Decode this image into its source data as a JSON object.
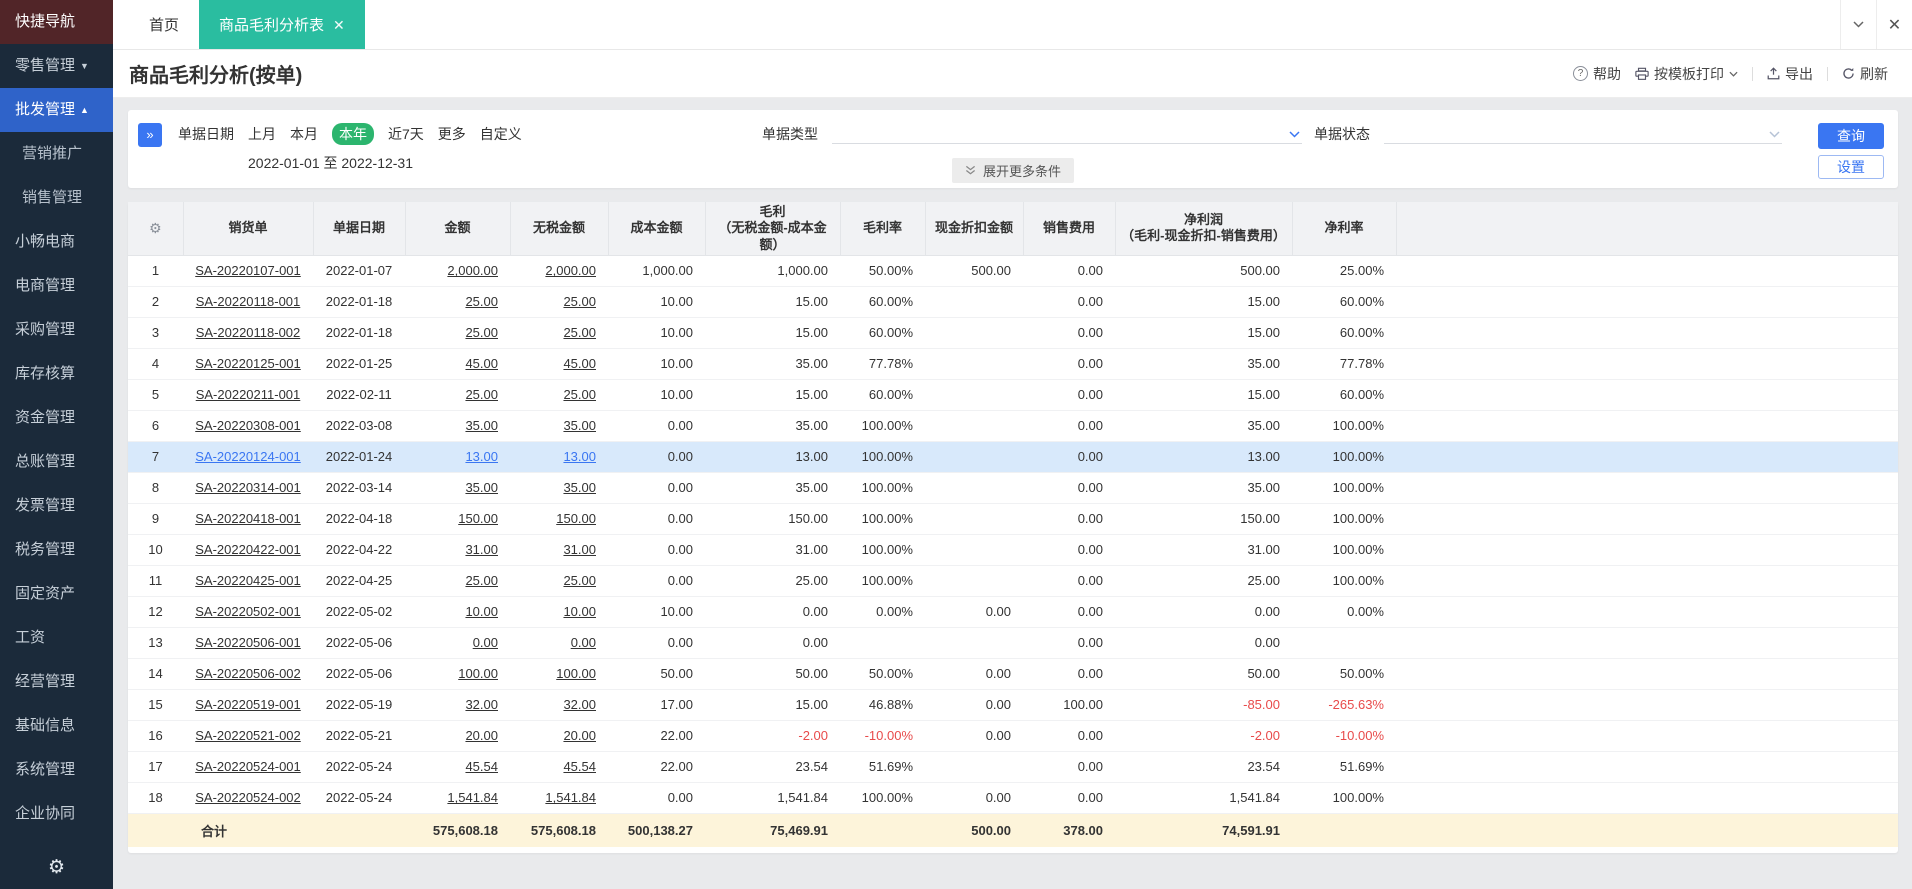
{
  "colors": {
    "accent_blue": "#3a76f2",
    "tab_teal": "#2abda0",
    "green_pill": "#2cb56e",
    "negative_red": "#e84b4b",
    "selected_row_bg": "#d8e9fb",
    "total_row_bg": "#fdf4da",
    "sidebar_bg": "#1b2a3a",
    "quick_nav_bg": "#512528"
  },
  "sidebar": {
    "items": [
      {
        "label": "快捷导航",
        "kind": "quick"
      },
      {
        "label": "零售管理",
        "kind": "group",
        "arrow": "down"
      },
      {
        "label": "批发管理",
        "kind": "group",
        "arrow": "up",
        "active": true
      },
      {
        "label": "营销推广",
        "kind": "sub"
      },
      {
        "label": "销售管理",
        "kind": "sub"
      },
      {
        "label": "小畅电商",
        "kind": "item"
      },
      {
        "label": "电商管理",
        "kind": "item"
      },
      {
        "label": "采购管理",
        "kind": "item"
      },
      {
        "label": "库存核算",
        "kind": "item"
      },
      {
        "label": "资金管理",
        "kind": "item"
      },
      {
        "label": "总账管理",
        "kind": "item"
      },
      {
        "label": "发票管理",
        "kind": "item"
      },
      {
        "label": "税务管理",
        "kind": "item"
      },
      {
        "label": "固定资产",
        "kind": "item"
      },
      {
        "label": "工资",
        "kind": "item"
      },
      {
        "label": "经营管理",
        "kind": "item"
      },
      {
        "label": "基础信息",
        "kind": "item"
      },
      {
        "label": "系统管理",
        "kind": "item"
      },
      {
        "label": "企业协同",
        "kind": "item"
      }
    ]
  },
  "tabs": {
    "home_label": "首页",
    "active_label": "商品毛利分析表"
  },
  "header": {
    "title": "商品毛利分析(按单)",
    "help": "帮助",
    "print": "按模板打印",
    "export": "导出",
    "refresh": "刷新"
  },
  "filters": {
    "date_label": "单据日期",
    "date_options": [
      "上月",
      "本月",
      "本年",
      "近7天",
      "更多",
      "自定义"
    ],
    "date_selected_index": 2,
    "date_range": "2022-01-01 至 2022-12-31",
    "type_label": "单据类型",
    "status_label": "单据状态",
    "query_button": "查询",
    "settings_button": "设置",
    "expand_more": "展开更多条件"
  },
  "table": {
    "columns": [
      {
        "label": "",
        "icon": "gear"
      },
      {
        "label": "销货单"
      },
      {
        "label": "单据日期"
      },
      {
        "label": "金额"
      },
      {
        "label": "无税金额"
      },
      {
        "label": "成本金额"
      },
      {
        "label": "毛利",
        "sub": "（无税金额-成本金额）"
      },
      {
        "label": "毛利率"
      },
      {
        "label": "现金折扣金额"
      },
      {
        "label": "销售费用"
      },
      {
        "label": "净利润",
        "sub": "（毛利-现金折扣-销售费用）"
      },
      {
        "label": "净利率"
      }
    ],
    "rows": [
      {
        "cells": [
          "1",
          "SA-20220107-001",
          "2022-01-07",
          "2,000.00",
          "2,000.00",
          "1,000.00",
          "1,000.00",
          "50.00%",
          "500.00",
          "0.00",
          "500.00",
          "25.00%"
        ]
      },
      {
        "cells": [
          "2",
          "SA-20220118-001",
          "2022-01-18",
          "25.00",
          "25.00",
          "10.00",
          "15.00",
          "60.00%",
          "",
          "0.00",
          "15.00",
          "60.00%"
        ]
      },
      {
        "cells": [
          "3",
          "SA-20220118-002",
          "2022-01-18",
          "25.00",
          "25.00",
          "10.00",
          "15.00",
          "60.00%",
          "",
          "0.00",
          "15.00",
          "60.00%"
        ]
      },
      {
        "cells": [
          "4",
          "SA-20220125-001",
          "2022-01-25",
          "45.00",
          "45.00",
          "10.00",
          "35.00",
          "77.78%",
          "",
          "0.00",
          "35.00",
          "77.78%"
        ]
      },
      {
        "cells": [
          "5",
          "SA-20220211-001",
          "2022-02-11",
          "25.00",
          "25.00",
          "10.00",
          "15.00",
          "60.00%",
          "",
          "0.00",
          "15.00",
          "60.00%"
        ]
      },
      {
        "cells": [
          "6",
          "SA-20220308-001",
          "2022-03-08",
          "35.00",
          "35.00",
          "0.00",
          "35.00",
          "100.00%",
          "",
          "0.00",
          "35.00",
          "100.00%"
        ]
      },
      {
        "cells": [
          "7",
          "SA-20220124-001",
          "2022-01-24",
          "13.00",
          "13.00",
          "0.00",
          "13.00",
          "100.00%",
          "",
          "0.00",
          "13.00",
          "100.00%"
        ],
        "selected": true
      },
      {
        "cells": [
          "8",
          "SA-20220314-001",
          "2022-03-14",
          "35.00",
          "35.00",
          "0.00",
          "35.00",
          "100.00%",
          "",
          "0.00",
          "35.00",
          "100.00%"
        ]
      },
      {
        "cells": [
          "9",
          "SA-20220418-001",
          "2022-04-18",
          "150.00",
          "150.00",
          "0.00",
          "150.00",
          "100.00%",
          "",
          "0.00",
          "150.00",
          "100.00%"
        ]
      },
      {
        "cells": [
          "10",
          "SA-20220422-001",
          "2022-04-22",
          "31.00",
          "31.00",
          "0.00",
          "31.00",
          "100.00%",
          "",
          "0.00",
          "31.00",
          "100.00%"
        ]
      },
      {
        "cells": [
          "11",
          "SA-20220425-001",
          "2022-04-25",
          "25.00",
          "25.00",
          "0.00",
          "25.00",
          "100.00%",
          "",
          "0.00",
          "25.00",
          "100.00%"
        ]
      },
      {
        "cells": [
          "12",
          "SA-20220502-001",
          "2022-05-02",
          "10.00",
          "10.00",
          "10.00",
          "0.00",
          "0.00%",
          "0.00",
          "0.00",
          "0.00",
          "0.00%"
        ]
      },
      {
        "cells": [
          "13",
          "SA-20220506-001",
          "2022-05-06",
          "0.00",
          "0.00",
          "0.00",
          "0.00",
          "",
          "",
          "0.00",
          "0.00",
          ""
        ]
      },
      {
        "cells": [
          "14",
          "SA-20220506-002",
          "2022-05-06",
          "100.00",
          "100.00",
          "50.00",
          "50.00",
          "50.00%",
          "0.00",
          "0.00",
          "50.00",
          "50.00%"
        ]
      },
      {
        "cells": [
          "15",
          "SA-20220519-001",
          "2022-05-19",
          "32.00",
          "32.00",
          "17.00",
          "15.00",
          "46.88%",
          "0.00",
          "100.00",
          "-85.00",
          "-265.63%"
        ],
        "red": [
          10,
          11
        ]
      },
      {
        "cells": [
          "16",
          "SA-20220521-002",
          "2022-05-21",
          "20.00",
          "20.00",
          "22.00",
          "-2.00",
          "-10.00%",
          "0.00",
          "0.00",
          "-2.00",
          "-10.00%"
        ],
        "red": [
          6,
          7,
          10,
          11
        ]
      },
      {
        "cells": [
          "17",
          "SA-20220524-001",
          "2022-05-24",
          "45.54",
          "45.54",
          "22.00",
          "23.54",
          "51.69%",
          "",
          "0.00",
          "23.54",
          "51.69%"
        ]
      },
      {
        "cells": [
          "18",
          "SA-20220524-002",
          "2022-05-24",
          "1,541.84",
          "1,541.84",
          "0.00",
          "1,541.84",
          "100.00%",
          "0.00",
          "0.00",
          "1,541.84",
          "100.00%"
        ]
      }
    ],
    "total": {
      "cells": [
        "",
        "合计",
        "",
        "575,608.18",
        "575,608.18",
        "500,138.27",
        "75,469.91",
        "",
        "500.00",
        "378.00",
        "74,591.91",
        ""
      ]
    }
  }
}
